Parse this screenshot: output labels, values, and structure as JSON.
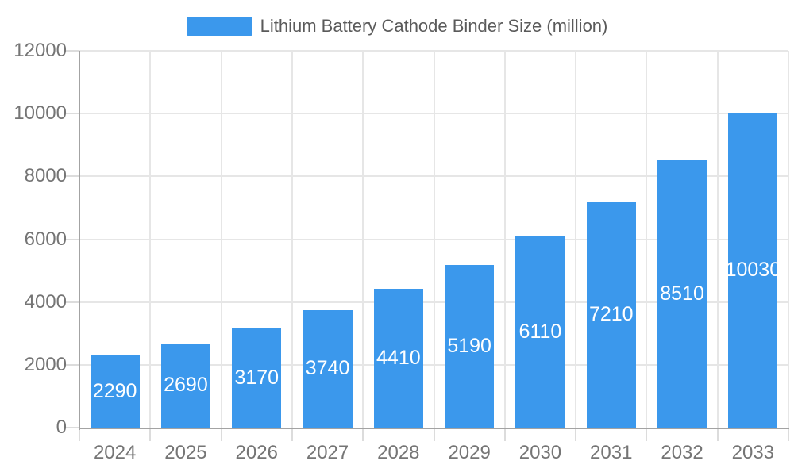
{
  "chart_data": {
    "type": "bar",
    "categories": [
      "2024",
      "2025",
      "2026",
      "2027",
      "2028",
      "2029",
      "2030",
      "2031",
      "2032",
      "2033"
    ],
    "series": [
      {
        "name": "Lithium Battery Cathode Binder Size (million)",
        "values": [
          2290,
          2690,
          3170,
          3740,
          4410,
          5190,
          6110,
          7210,
          8510,
          10030
        ]
      }
    ],
    "title": "",
    "xlabel": "",
    "ylabel": "",
    "ylim": [
      0,
      12000
    ],
    "yticks": [
      0,
      2000,
      4000,
      6000,
      8000,
      10000,
      12000
    ],
    "grid": true,
    "legend_position": "top-center",
    "bar_value_labels_position": "inside-middle",
    "colors": {
      "bar": "#3B98EC",
      "bar_value_label": "#FFFFFF",
      "axis_line": "#A3A3A3",
      "tick": "#DCDCDC",
      "grid_line": "#E6E6E6",
      "axis_label": "#757575",
      "legend_text": "#5A5A5A",
      "background": "#FFFFFF"
    }
  }
}
